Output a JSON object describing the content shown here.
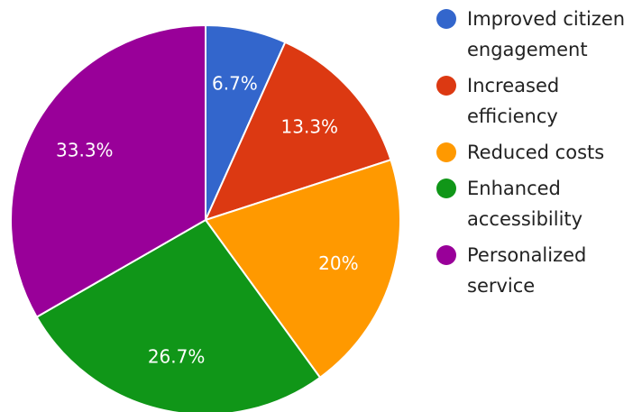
{
  "chart_data": {
    "type": "pie",
    "title": "",
    "legend_position": "right",
    "slices": [
      {
        "label": "Improved citizen engagement",
        "value": 6.7,
        "display": "6.7%",
        "color": "#3366cc"
      },
      {
        "label": "Increased efficiency",
        "value": 13.3,
        "display": "13.3%",
        "color": "#dc3912"
      },
      {
        "label": "Reduced costs",
        "value": 20,
        "display": "20%",
        "color": "#ff9900"
      },
      {
        "label": "Enhanced accessibility",
        "value": 26.7,
        "display": "26.7%",
        "color": "#109618"
      },
      {
        "label": "Personalized service",
        "value": 33.3,
        "display": "33.3%",
        "color": "#990099"
      }
    ]
  }
}
